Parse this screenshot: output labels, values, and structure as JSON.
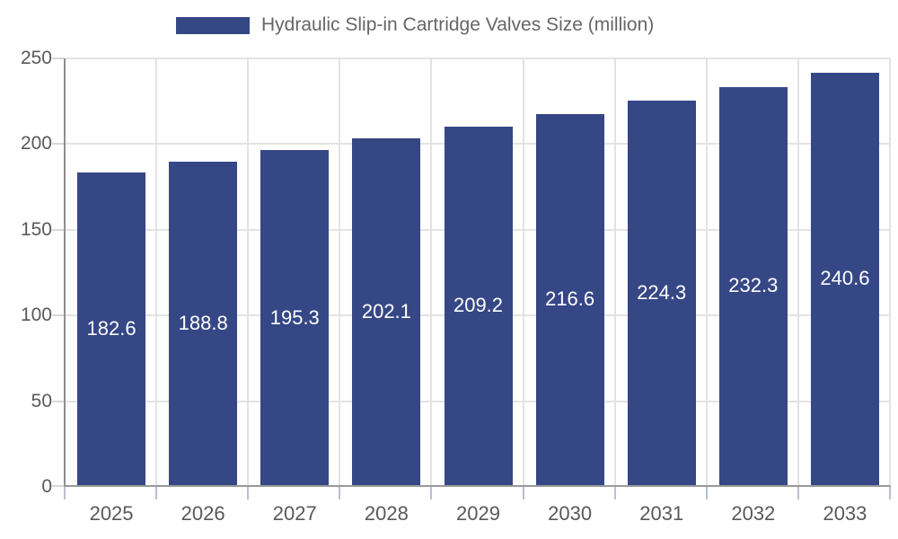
{
  "legend": {
    "label": "Hydraulic Slip-in Cartridge Valves Size (million)"
  },
  "chart_data": {
    "type": "bar",
    "title": "Hydraulic Slip-in Cartridge Valves Size (million)",
    "categories": [
      "2025",
      "2026",
      "2027",
      "2028",
      "2029",
      "2030",
      "2031",
      "2032",
      "2033"
    ],
    "values": [
      182.6,
      188.8,
      195.3,
      202.1,
      209.2,
      216.6,
      224.3,
      232.3,
      240.6
    ],
    "xlabel": "",
    "ylabel": "",
    "ylim": [
      0,
      250
    ],
    "yticks": [
      0,
      50,
      100,
      150,
      200,
      250
    ],
    "grid": true,
    "legend_position": "top",
    "bar_color": "#364786",
    "value_label_color": "#ffffff",
    "grid_color": "#e3e3e3",
    "axis_color": "#999999",
    "tick_label_color": "#595959",
    "title_color": "#666666"
  }
}
